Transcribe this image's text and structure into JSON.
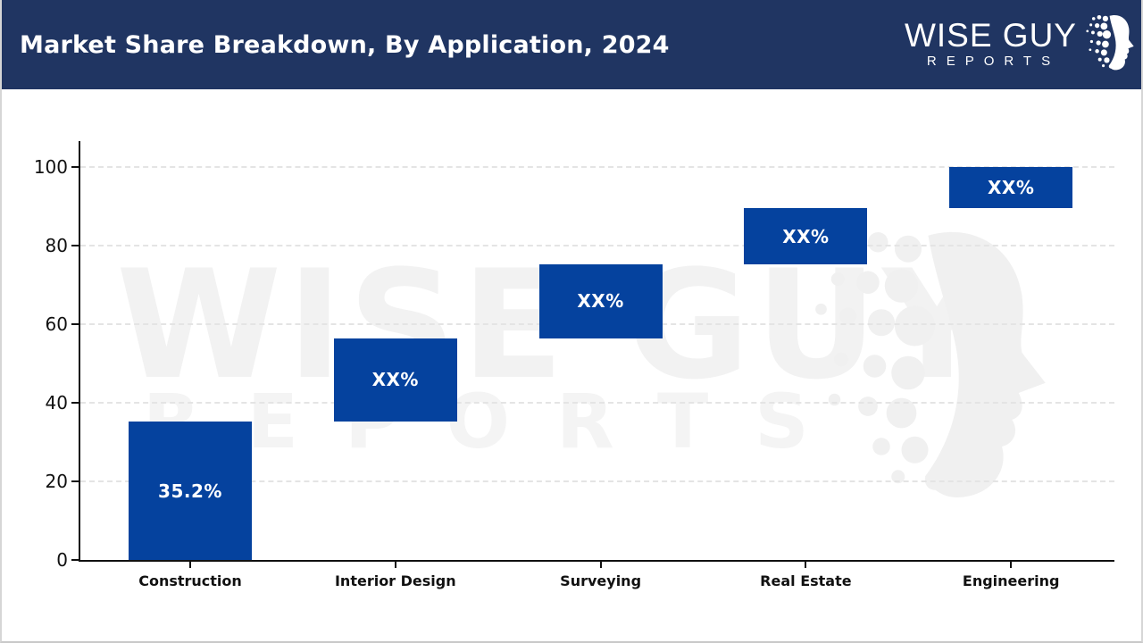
{
  "header": {
    "title": "Market Share Breakdown, By Application, 2024",
    "logo": {
      "line1": "WISE GUY",
      "line2": "REPORTS"
    }
  },
  "watermark": {
    "line1": "WISE GUY",
    "line2": "REPORTS"
  },
  "colors": {
    "header_bg": "#203562",
    "bar": "#05429e",
    "bar_label_text": "#ffffff",
    "axis": "#111111",
    "gridline": "#e4e4e4",
    "watermark": "#f2f2f2"
  },
  "chart_data": {
    "type": "bar",
    "subtype": "waterfall",
    "title": "Market Share Breakdown, By Application, 2024",
    "categories": [
      "Construction",
      "Interior Design",
      "Surveying",
      "Real Estate",
      "Engineering"
    ],
    "segments": [
      {
        "category": "Construction",
        "start": 0,
        "end": 35.2,
        "label": "35.2%"
      },
      {
        "category": "Interior Design",
        "start": 35.2,
        "end": 56.4,
        "label": "XX%"
      },
      {
        "category": "Surveying",
        "start": 56.4,
        "end": 75.2,
        "label": "XX%"
      },
      {
        "category": "Real Estate",
        "start": 75.2,
        "end": 89.5,
        "label": "XX%"
      },
      {
        "category": "Engineering",
        "start": 89.5,
        "end": 100,
        "label": "XX%"
      }
    ],
    "y_ticks": [
      0,
      20,
      40,
      60,
      80,
      100
    ],
    "ylim": [
      0,
      106
    ],
    "xlabel": "",
    "ylabel": "",
    "grid": "horizontal-dashed",
    "legend": "none"
  }
}
